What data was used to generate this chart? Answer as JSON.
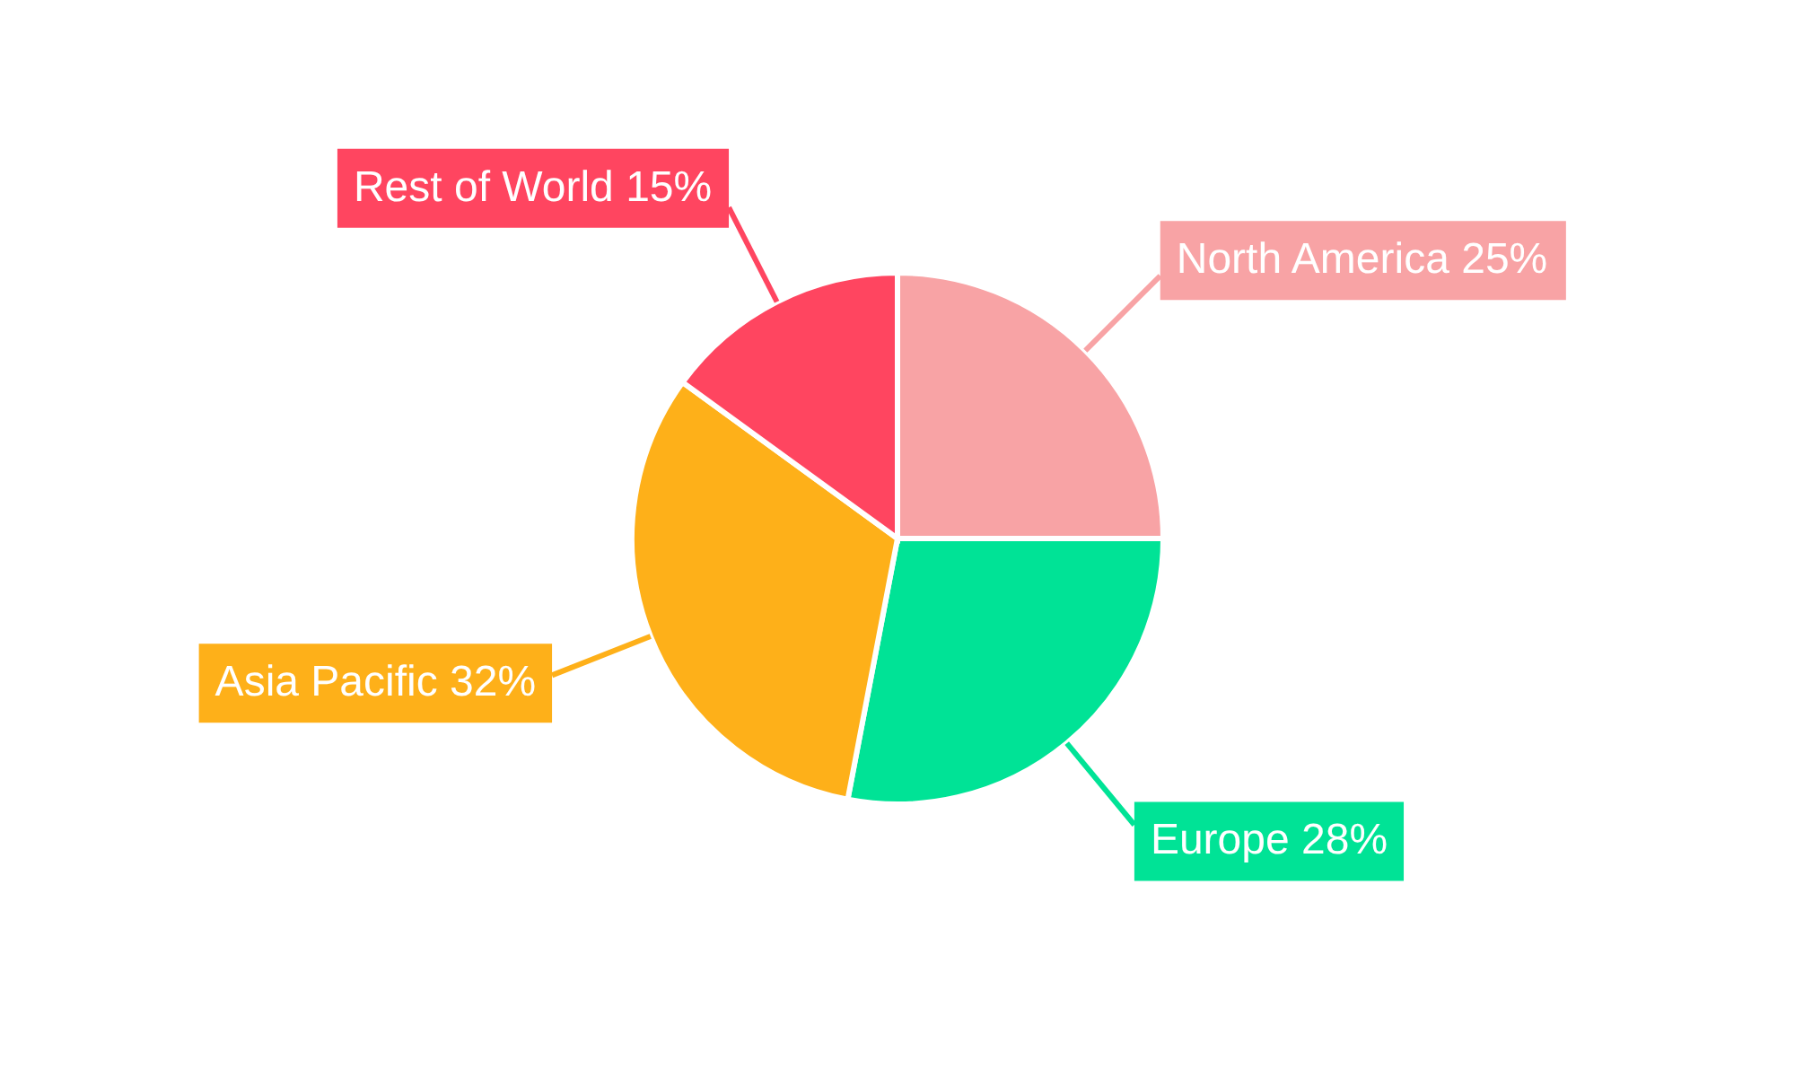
{
  "chart_data": {
    "type": "pie",
    "categories": [
      "North America",
      "Europe",
      "Asia Pacific",
      "Rest of World"
    ],
    "values": [
      25,
      28,
      32,
      15
    ],
    "colors": [
      "#f8a3a5",
      "#00e396",
      "#feb019",
      "#ff4560"
    ],
    "value_labels": [
      "25%",
      "28%",
      "32%",
      "15%"
    ]
  }
}
